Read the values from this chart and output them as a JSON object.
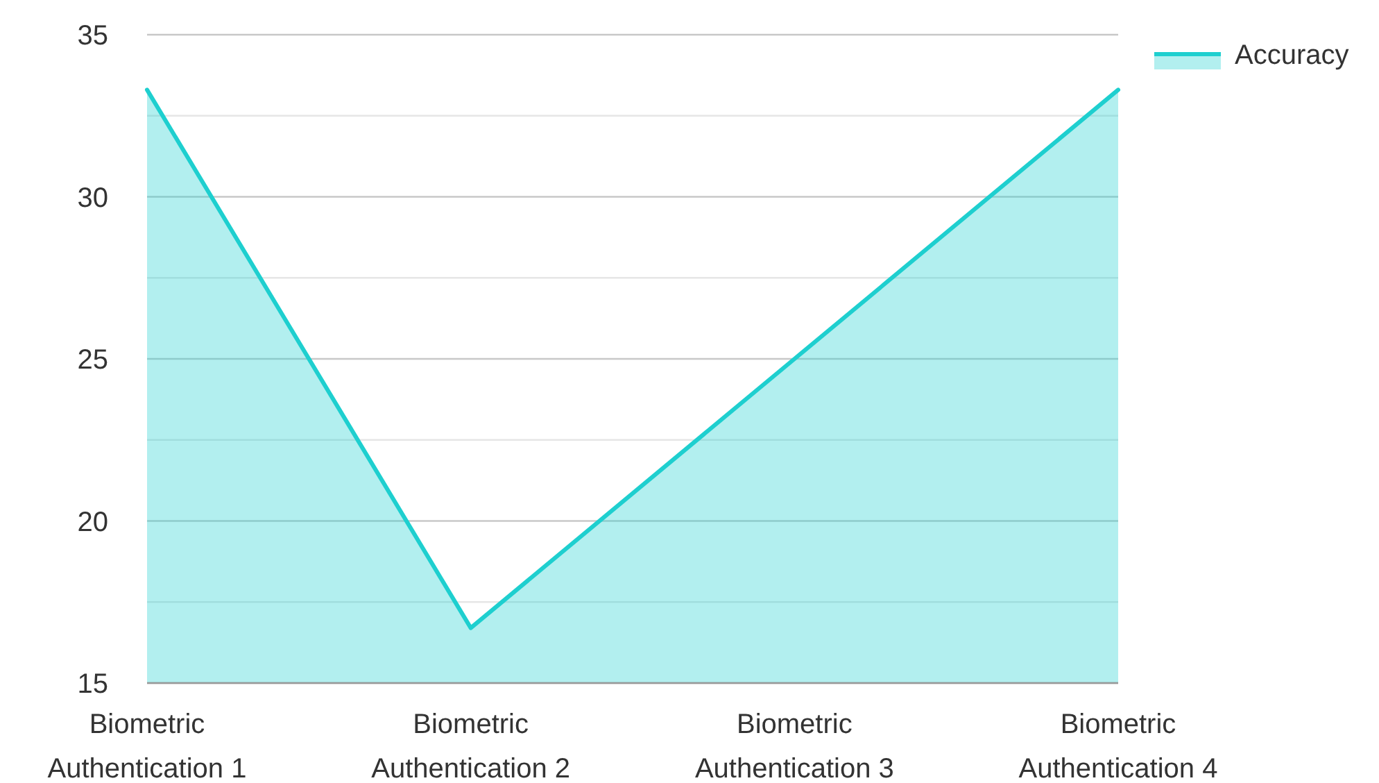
{
  "chart_data": {
    "type": "area",
    "categories": [
      "Biometric Authentication 1",
      "Biometric Authentication 2",
      "Biometric Authentication 3",
      "Biometric Authentication 4"
    ],
    "series": [
      {
        "name": "Accuracy",
        "color": "#1ecfcf",
        "values": [
          33.3,
          16.7,
          25,
          33.3
        ]
      }
    ],
    "ylim": [
      15,
      35
    ],
    "yticks": [
      15,
      {
        "value": 17.5,
        "label": null
      },
      20,
      {
        "value": 22.5,
        "label": null
      },
      25,
      {
        "value": 27.5,
        "label": null
      },
      30,
      {
        "value": 32.5,
        "label": null
      },
      35
    ],
    "grid": "y",
    "legend": "top right"
  }
}
